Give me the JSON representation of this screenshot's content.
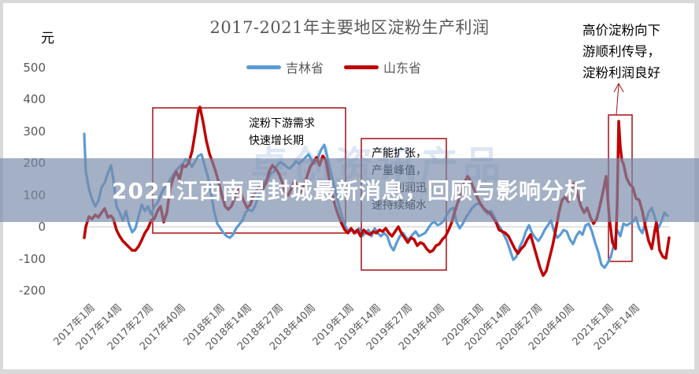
{
  "header": {
    "title": "2017-2021年主要地区淀粉生产利润",
    "unit": "元"
  },
  "legend": [
    {
      "label": "吉林省",
      "color": "#5b9bd5"
    },
    {
      "label": "山东省",
      "color": "#c00000"
    }
  ],
  "annotations": {
    "box1": {
      "line1": "淀粉下游需求",
      "line2": "快速增长期"
    },
    "box2": {
      "line1": "产能扩张，",
      "line2": "产量峰值，",
      "line3": "利润迅",
      "line4": "速持续缩水"
    },
    "callout": {
      "line1": "高价淀粉向下",
      "line2": "游顺利传导，",
      "line3": "淀粉利润良好"
    },
    "box_color": "#a50f15"
  },
  "watermark": "卓创资讯产品",
  "banner": {
    "text": "2021江西南昌封城最新消息，回顾与影响分析"
  },
  "chart_data": {
    "type": "line",
    "title": "2017-2021年主要地区淀粉生产利润",
    "xlabel": "",
    "ylabel": "元",
    "ylim": [
      -200,
      500
    ],
    "yticks": [
      500,
      400,
      300,
      200,
      100,
      0,
      -100,
      -200
    ],
    "grid": false,
    "legend_position": "top",
    "categories": [
      "2017年1周",
      "2017年14周",
      "2017年27周",
      "2017年40周",
      "2018年1周",
      "2018年14周",
      "2018年27周",
      "2018年40周",
      "2019年1周",
      "2019年14周",
      "2019年27周",
      "2019年40周",
      "2020年1周",
      "2020年14周",
      "2020年27周",
      "2020年40周",
      "2021年1周",
      "2021年14周"
    ],
    "series": [
      {
        "name": "吉林省",
        "color": "#5b9bd5",
        "values": [
          285,
          150,
          120,
          90,
          60,
          100,
          130,
          150,
          100,
          40,
          60,
          20,
          -10,
          -40,
          10,
          20,
          30,
          60,
          50,
          100,
          90,
          110,
          130,
          170,
          190,
          210,
          180,
          130,
          70,
          30,
          -20,
          -40,
          -40,
          -10,
          -30,
          0,
          30,
          50,
          70,
          100,
          130,
          150,
          170,
          190,
          200,
          180,
          190,
          170,
          200,
          220,
          250,
          230,
          180,
          120,
          60,
          20,
          0,
          10,
          -10,
          -20,
          10,
          -30,
          -20,
          -50,
          -30,
          -80,
          -60,
          -20,
          -40,
          -50,
          -40,
          -60,
          -30,
          -20,
          0,
          10,
          0,
          20,
          60,
          90,
          60,
          30,
          -20,
          -50,
          -30,
          40,
          60,
          80,
          100,
          70,
          40,
          0,
          -20,
          -60,
          -80,
          -60,
          -40,
          -20,
          10,
          40,
          60,
          100,
          110,
          20,
          0,
          -30,
          -10,
          -50,
          -20,
          10,
          40,
          60,
          -20,
          -80,
          -130,
          -160,
          -80,
          0,
          20,
          40,
          30,
          40,
          20,
          60,
          110,
          70,
          60,
          0,
          40,
          20
        ],
        "pixel_points": "107,170 109,218 113,240 117,253 121,262 125,255 129,238 133,232 137,220 141,210 144,228 148,262 152,270 156,280 160,268 164,285 168,295 172,290 176,275 180,260 184,268 188,262 192,272 196,262 200,258 204,248 208,240 212,236 216,228 220,222 224,216 228,212 232,208 236,202 240,206 244,212 248,205 252,198 256,196 260,210 264,224 268,244 272,268 276,284 280,290 284,296 288,300 292,302 296,298 300,290 304,285 308,280 312,270 316,266 320,268 324,262 328,250 332,240 336,230 340,228 344,220 348,218 352,210 356,206 360,208 364,212 368,214 372,210 376,205 380,208 384,204 388,200 392,196 396,204 400,208 404,200 408,190 412,184 416,200 420,218 424,234 428,252 432,266 436,280 440,290 444,294 448,292 452,296 456,290 460,300 464,296 468,292 472,300 476,290 480,296 484,300 488,296 492,300 496,312 500,318 504,308 508,300 512,296 516,302 520,304 524,298 528,294 532,300 536,298 540,296 544,290 548,284 552,282 556,286 560,284 564,280 568,272 572,266 576,264 580,282 584,290 588,284 592,276 596,270 600,264 604,260 608,258 612,262 616,268 620,272 624,268 628,276 632,284 636,290 640,298 644,306 648,318 652,330 656,326 660,314 664,306 668,294 672,286 676,296 680,302 684,306 688,300 692,292 696,286 700,280 704,294 708,302 712,298 716,292 720,294 724,304 728,310 732,300 736,294 740,298 744,286 748,284 752,294 756,308 760,320 764,336 768,340 772,334 776,326 780,310 784,292 788,300 792,284 796,286 800,284 804,282 808,276 812,290 816,296 820,282 824,270 828,264 832,276 836,290 840,282 844,270 848,274"
      },
      {
        "name": "山东省",
        "color": "#c00000",
        "values": [
          -40,
          50,
          30,
          40,
          40,
          60,
          20,
          -40,
          -50,
          -80,
          -60,
          -20,
          0,
          20,
          60,
          40,
          60,
          80,
          -10,
          0,
          60,
          100,
          180,
          200,
          160,
          190,
          170,
          200,
          220,
          370,
          260,
          200,
          150,
          160,
          180,
          220,
          160,
          150,
          120,
          110,
          120,
          160,
          100,
          110,
          150,
          120,
          180,
          200,
          210,
          220,
          160,
          200,
          220,
          150,
          100,
          40,
          0,
          -20,
          -10,
          -20,
          0,
          -10,
          -20,
          -30,
          -40,
          -60,
          -80,
          -60,
          -40,
          -20,
          0,
          20,
          100,
          160,
          180,
          110,
          100,
          80,
          120,
          140,
          100,
          120,
          80,
          100,
          60,
          20,
          -20,
          -60,
          -120,
          -160,
          -130,
          -80,
          -20,
          20,
          60,
          120,
          150,
          170,
          180,
          100,
          60,
          0,
          -40,
          -100,
          -60,
          330,
          220,
          160,
          150,
          120,
          80,
          40,
          -20,
          -60,
          -110,
          -110,
          -100,
          -40,
          -40
        ],
        "pixel_points": "107,302 109,288 113,275 117,278 121,273 125,276 129,270 133,265 137,276 141,274 144,278 148,292 152,300 156,306 160,310 164,314 168,318 172,318 176,313 180,305 184,296 188,290 192,280 196,278 200,268 204,262 208,282 212,270 216,240 220,226 224,218 228,228 232,210 236,212 240,206 244,192 248,168 252,140 254,136 258,155 262,178 266,195 270,206 274,218 278,232 282,248 286,262 290,266 294,262 298,252 302,240 306,246 310,256 314,264 318,260 322,248 326,242 330,236 334,240 338,232 342,218 346,210 350,214 354,220 358,230 362,244 366,248 370,240 374,230 378,236 382,244 386,236 390,224 394,212 398,206 402,200 406,210 410,198 414,204 418,226 422,246 426,262 430,274 434,284 438,292 442,296 446,290 450,296 454,292 458,300 462,292 466,296 470,298 474,294 478,296 482,292 486,294 490,290 494,296 498,300 502,294 506,288 510,296 514,302 518,308 522,302 526,304 530,312 534,308 538,310 542,316 546,320 550,318 554,312 558,310 562,304 566,300 570,292 574,282 578,268 582,256 586,244 590,232 594,224 598,230 602,240 606,250 610,258 614,264 618,268 622,270 626,276 630,282 634,292 638,294 642,296 646,300 650,308 654,316 658,322 662,316 666,312 670,304 674,298 678,312 682,326 686,340 690,350 694,344 698,328 702,312 706,292 710,270 714,254 718,250 722,256 726,240 730,232 734,248 738,262 742,270 746,264 750,276 754,284 758,278 762,262 766,244 770,224 774,276 778,308 782,316 784,260 786,154 788,186 790,204 792,208 796,226 800,234 804,238 808,252 812,254 816,268 820,288 824,306 828,316 832,292 834,282 838,318 842,326 846,328 850,302"
      }
    ]
  }
}
